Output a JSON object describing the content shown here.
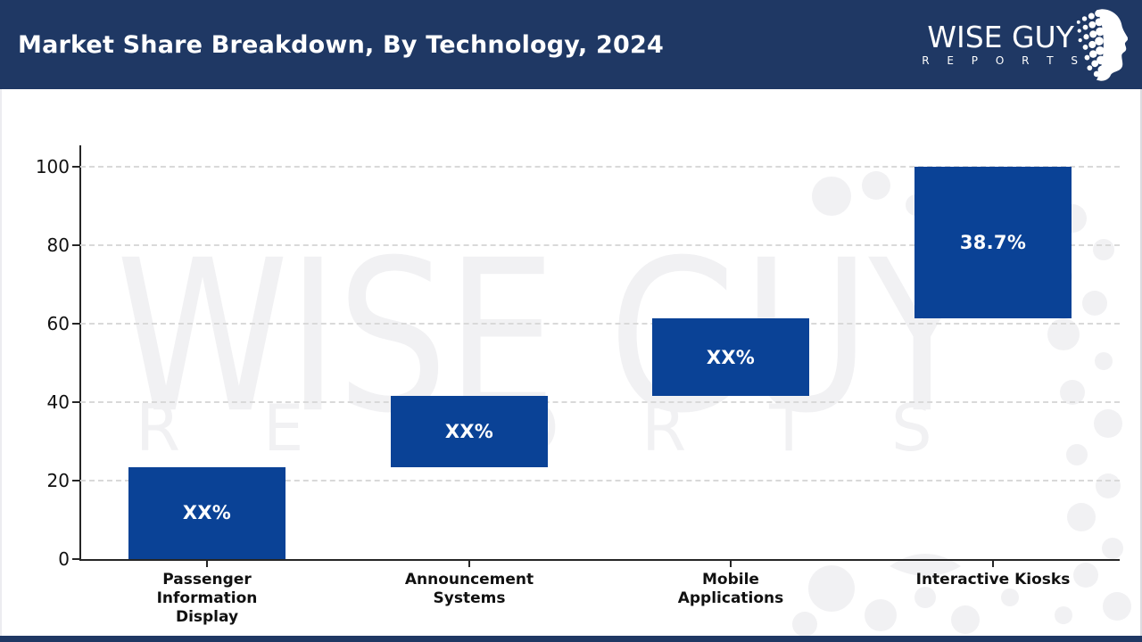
{
  "header": {
    "title": "Market Share Breakdown, By Technology, 2024",
    "logo": {
      "wordmark": "WISE GUY",
      "subtitle": "R E P O R T S"
    }
  },
  "watermark": {
    "line1": "WISE GUY",
    "line2": "R E P O R T S"
  },
  "colors": {
    "header_bg": "#1f3864",
    "bar_fill": "#0a4296",
    "bar_label_text": "#ffffff",
    "gridline": "#d9d9d9",
    "axis": "#262626",
    "watermark": "#f1f1f3"
  },
  "chart_data": {
    "type": "bar",
    "subtype": "waterfall-floating-bars",
    "title": "Market Share Breakdown, By Technology, 2024",
    "categories": [
      "Passenger Information Display",
      "Announcement Systems",
      "Mobile Applications",
      "Interactive Kiosks"
    ],
    "category_lines": [
      [
        "Passenger",
        "Information",
        "Display"
      ],
      [
        "Announcement",
        "Systems"
      ],
      [
        "Mobile",
        "Applications"
      ],
      [
        "Interactive Kiosks"
      ]
    ],
    "bars": [
      {
        "category": "Passenger Information Display",
        "start": 0,
        "end": 23.5,
        "value_label": "XX%"
      },
      {
        "category": "Announcement Systems",
        "start": 23.5,
        "end": 41.5,
        "value_label": "XX%"
      },
      {
        "category": "Mobile Applications",
        "start": 41.5,
        "end": 61.3,
        "value_label": "XX%"
      },
      {
        "category": "Interactive Kiosks",
        "start": 61.3,
        "end": 100,
        "value_label": "38.7%"
      }
    ],
    "y_ticks": [
      0,
      20,
      40,
      60,
      80,
      100
    ],
    "ylim": [
      0,
      100
    ],
    "xlabel": "",
    "ylabel": "",
    "grid": "horizontal-dashed",
    "legend": "none"
  }
}
